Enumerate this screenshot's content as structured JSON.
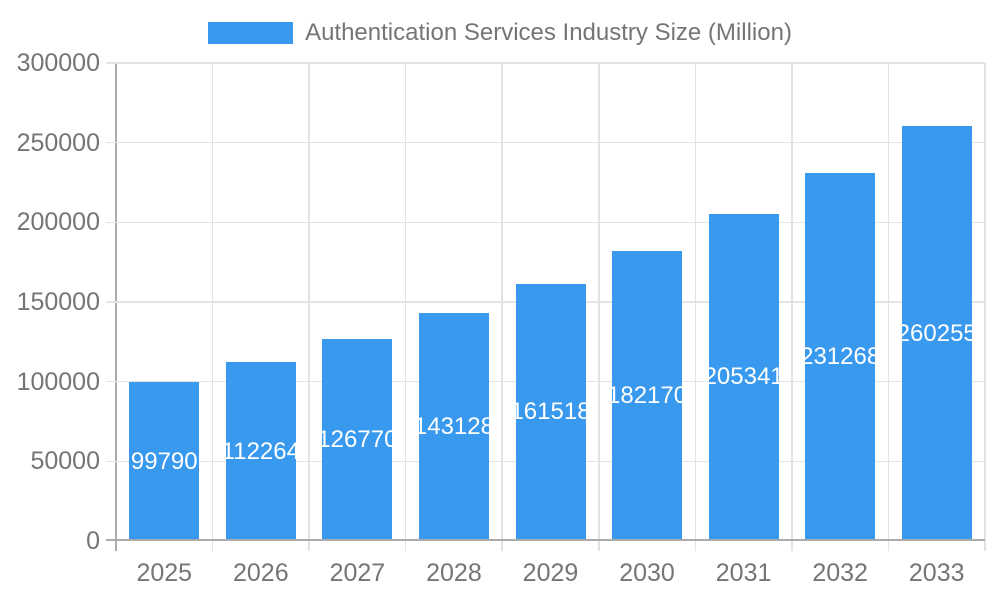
{
  "chart_data": {
    "type": "bar",
    "title": "Authentication Services Industry Size (Million)",
    "series_name": "Authentication Services Industry Size (Million)",
    "categories": [
      "2025",
      "2026",
      "2027",
      "2028",
      "2029",
      "2030",
      "2031",
      "2032",
      "2033"
    ],
    "values": [
      99790,
      112264,
      126770,
      143128,
      161518,
      182170,
      205341,
      231268,
      260255
    ],
    "xlabel": "",
    "ylabel": "",
    "ylim": [
      0,
      300000
    ],
    "ytick_step": 50000,
    "ytick_labels": [
      "0",
      "50000",
      "100000",
      "150000",
      "200000",
      "250000",
      "300000"
    ],
    "grid": true,
    "legend_position": "top",
    "value_label_style": "white-centered-inside-bar"
  },
  "colors": {
    "bar": "#3899EE",
    "grid": "#E3E3E3",
    "axis": "#ABABAB",
    "tick_text": "#757575",
    "bar_label_text": "#FFFFFF",
    "background": "#FFFFFF"
  }
}
